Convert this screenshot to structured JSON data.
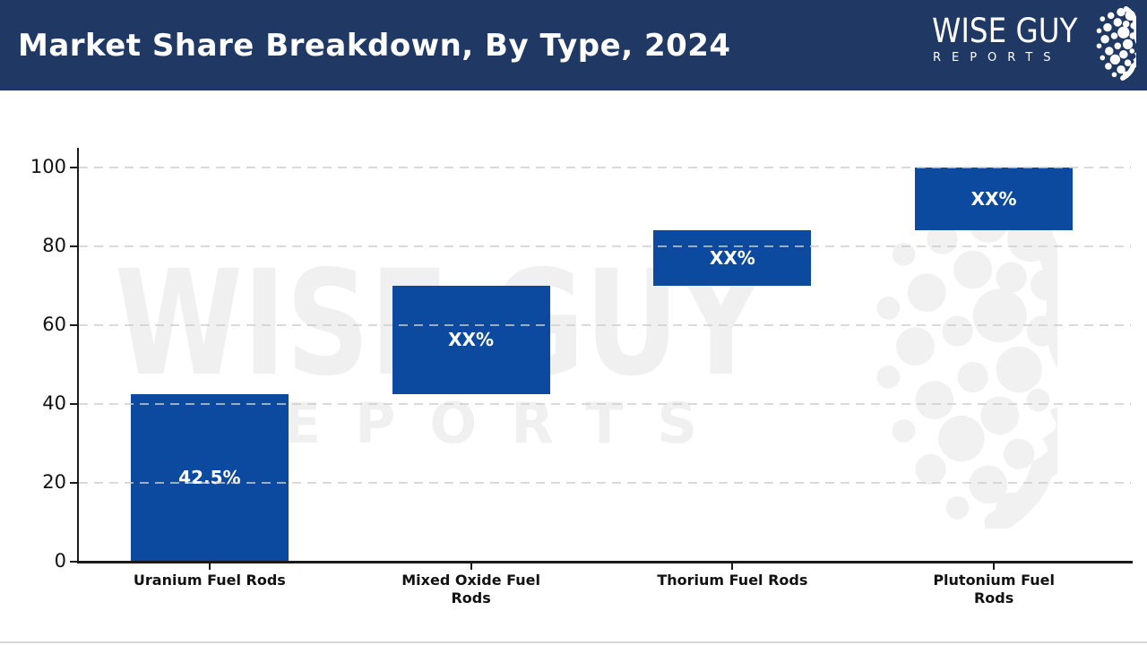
{
  "header": {
    "title": "Market Share Breakdown, By Type, 2024",
    "bg_color": "#1F3864",
    "logo": {
      "line1": "WISE GUY",
      "line2": "REPORTS"
    }
  },
  "watermark": {
    "line1": "WISE GUY",
    "line2": "REPORTS",
    "color": "#f0f0f0"
  },
  "chart_data": {
    "type": "bar",
    "subtype": "waterfall",
    "title": "Market Share Breakdown, By Type, 2024",
    "categories": [
      "Uranium Fuel Rods",
      "Mixed Oxide Fuel Rods",
      "Thorium Fuel Rods",
      "Plutonium Fuel Rods"
    ],
    "segments": [
      {
        "category": "Uranium Fuel Rods",
        "tick_label": "Uranium Fuel Rods",
        "start": 0,
        "end": 42.5,
        "label": "42.5%"
      },
      {
        "category": "Mixed Oxide Fuel Rods",
        "tick_label": "Mixed Oxide Fuel\nRods",
        "start": 42.5,
        "end": 70,
        "label": "XX%"
      },
      {
        "category": "Thorium Fuel Rods",
        "tick_label": "Thorium Fuel Rods",
        "start": 70,
        "end": 84,
        "label": "XX%"
      },
      {
        "category": "Plutonium Fuel Rods",
        "tick_label": "Plutonium Fuel\nRods",
        "start": 84,
        "end": 100,
        "label": "XX%"
      }
    ],
    "ylim": [
      0,
      100
    ],
    "yticks": [
      0,
      20,
      40,
      60,
      80,
      100
    ],
    "grid": "horizontal-dashed",
    "legend": "none",
    "bar_color": "#0B4A9F",
    "xlabel": "",
    "ylabel": ""
  }
}
